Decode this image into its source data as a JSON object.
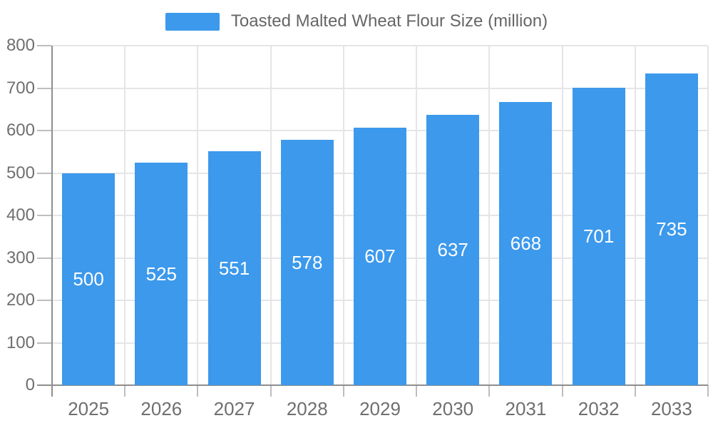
{
  "legend": {
    "label": "Toasted Malted Wheat Flour Size (million)"
  },
  "chart_data": {
    "type": "bar",
    "title": "",
    "categories": [
      "2025",
      "2026",
      "2027",
      "2028",
      "2029",
      "2030",
      "2031",
      "2032",
      "2033"
    ],
    "series": [
      {
        "name": "Toasted Malted Wheat Flour Size (million)",
        "values": [
          500,
          525,
          551,
          578,
          607,
          637,
          668,
          701,
          735
        ]
      }
    ],
    "xlabel": "",
    "ylabel": "",
    "ylim": [
      0,
      800
    ],
    "ytick_step": 100,
    "ytick_labels": [
      "0",
      "100",
      "200",
      "300",
      "400",
      "500",
      "600",
      "700",
      "800"
    ],
    "grid": true,
    "legend_position": "top-center",
    "value_labels_position": "inside-middle",
    "colors": {
      "bar": "#3C99EC",
      "value_label": "#FFFFFF",
      "axis_line": "#8E8E8E",
      "gridline": "#E5E5E8",
      "tick": "#BDBDC2",
      "axis_text": "#6F6F6F",
      "legend_text": "#666666",
      "background": "#FFFFFF"
    }
  }
}
